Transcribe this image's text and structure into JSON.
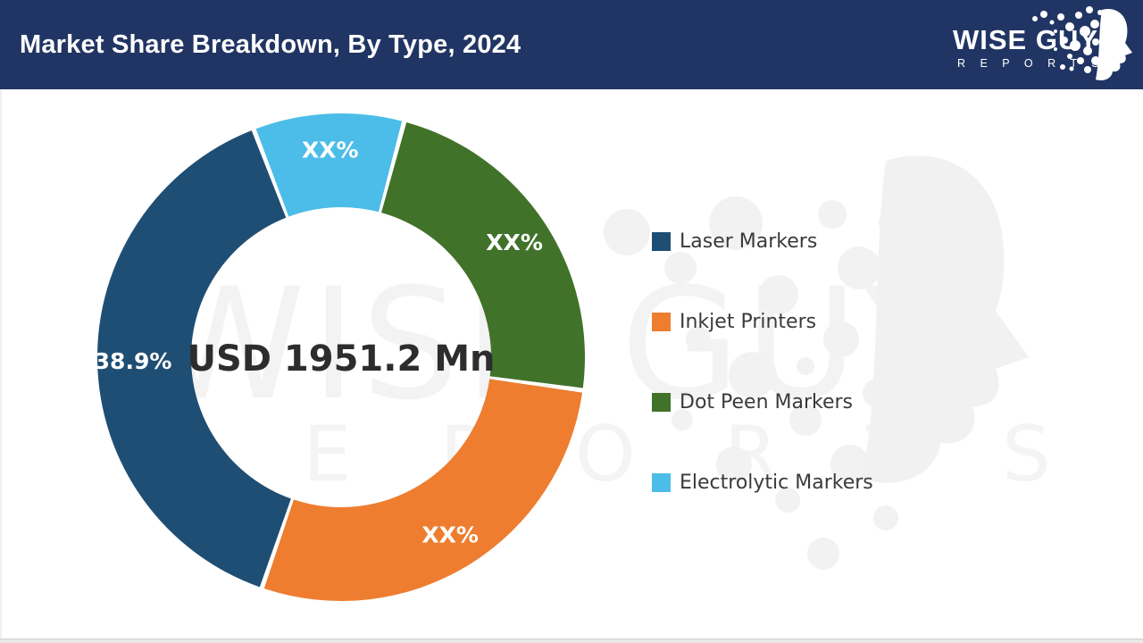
{
  "header": {
    "title": "Market Share Breakdown, By Type, 2024",
    "bg_color": "#213564",
    "logo": {
      "name": "WISE GUY",
      "subtitle": "R E P O R T S"
    }
  },
  "watermark": {
    "line1": "WISE GUY",
    "line2": "R E P O R T S"
  },
  "chart_data": {
    "type": "donut",
    "title": "Market Share Breakdown, By Type, 2024",
    "center_label": "USD 1951.2 Mn",
    "units": "percent market share",
    "start_angle_deg": -21,
    "direction": "clockwise",
    "draw_order": [
      3,
      2,
      1,
      0
    ],
    "legend_position": "right",
    "series": [
      {
        "label": "Laser Markers",
        "value": 38.9,
        "display_label": "38.9%",
        "color": "#1f4e74"
      },
      {
        "label": "Inkjet Printers",
        "value": 28.1,
        "display_label": "XX%",
        "color": "#ee7d30"
      },
      {
        "label": "Dot Peen Markers",
        "value": 23.0,
        "display_label": "XX%",
        "color": "#41722a"
      },
      {
        "label": "Electrolytic Markers",
        "value": 10.0,
        "display_label": "XX%",
        "color": "#4cbde8"
      }
    ]
  }
}
